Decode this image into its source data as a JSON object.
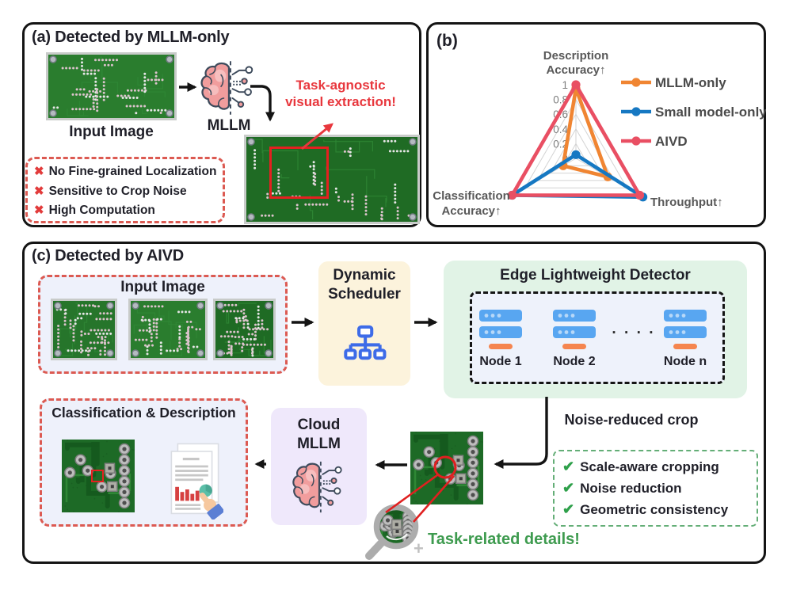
{
  "panel_a": {
    "title": "(a) Detected by MLLM-only",
    "input_image_label": "Input Image",
    "model_label": "MLLM",
    "annotation_line1": "Task-agnostic",
    "annotation_line2": "visual extraction!",
    "issue_icon": "✖",
    "issues": [
      "No Fine-grained Localization",
      "Sensitive to Crop Noise",
      "High Computation"
    ]
  },
  "panel_b": {
    "label": "(b)"
  },
  "chart_data": {
    "type": "radar",
    "axes": [
      "Description Accuracy↑",
      "Throughput↑",
      "Classification Accuracy↑"
    ],
    "axis_range": [
      0,
      1
    ],
    "ticks": [
      0,
      0.2,
      0.4,
      0.6,
      0.8,
      1
    ],
    "grid": true,
    "legend_position": "right",
    "series": [
      {
        "name": "MLLM-only",
        "color": "#F08532",
        "values": [
          0.95,
          0.5,
          0.2
        ]
      },
      {
        "name": "Small model-only",
        "color": "#1678C2",
        "values": [
          0.05,
          1.05,
          1.0
        ]
      },
      {
        "name": "AIVD",
        "color": "#E94F63",
        "values": [
          1.0,
          1.0,
          1.0
        ]
      }
    ]
  },
  "panel_c": {
    "title": "(c) Detected by AIVD",
    "input_image_label": "Input Image",
    "scheduler_line1": "Dynamic",
    "scheduler_line2": "Scheduler",
    "edge_detector_title": "Edge Lightweight Detector",
    "nodes": [
      "Node 1",
      "Node 2",
      "Node n"
    ],
    "node_ellipsis": "· · · ·",
    "noise_crop_label": "Noise-reduced crop",
    "feature_icon": "✔",
    "features": [
      "Scale-aware cropping",
      "Noise reduction",
      "Geometric consistency"
    ],
    "task_label": "Task-related details!",
    "classification_title": "Classification & Description",
    "cloud_line1": "Cloud",
    "cloud_line2": "MLLM"
  },
  "colors": {
    "accent_red": "#E8373D",
    "dashed_red": "#DC5A52",
    "green_text": "#3E9B4F",
    "check_green": "#2EA04A",
    "cream": "#FCF3DC",
    "mint": "#E1F3E6",
    "lavender": "#EFE8FB",
    "panel_blue": "#EEF1FB",
    "server_blue": "#58A6F1",
    "server_orange": "#F5854F",
    "scheduler_blue": "#3D6BE8"
  }
}
